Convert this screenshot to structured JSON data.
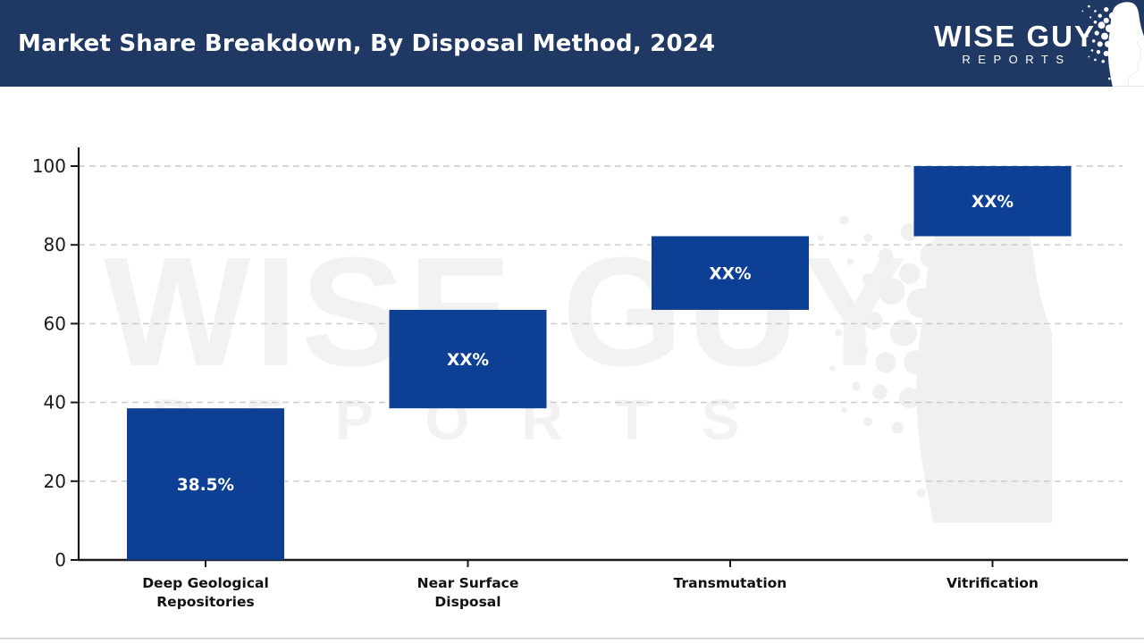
{
  "header": {
    "title": "Market Share Breakdown, By Disposal Method, 2024",
    "bg_color": "#203864",
    "title_color": "#ffffff",
    "logo": {
      "line1": "WISE GUY",
      "line2": "REPORTS"
    }
  },
  "watermark": {
    "line1": "WISE GUY",
    "line2": "REPORTS",
    "color": "#f2f2f2"
  },
  "chart_data": {
    "type": "bar",
    "variant": "waterfall",
    "title": "Market Share Breakdown, By Disposal Method, 2024",
    "categories": [
      "Deep Geological Repositories",
      "Near Surface Disposal",
      "Transmutation",
      "Vitrification"
    ],
    "category_lines": [
      [
        "Deep Geological",
        "Repositories"
      ],
      [
        "Near Surface",
        "Disposal"
      ],
      [
        "Transmutation"
      ],
      [
        "Vitrification"
      ]
    ],
    "bars": [
      {
        "category": "Deep Geological Repositories",
        "start": 0,
        "end": 38.5,
        "value_label": "38.5%"
      },
      {
        "category": "Near Surface Disposal",
        "start": 38.5,
        "end": 63.5,
        "value_label": "XX%"
      },
      {
        "category": "Transmutation",
        "start": 63.5,
        "end": 82.2,
        "value_label": "XX%"
      },
      {
        "category": "Vitrification",
        "start": 82.2,
        "end": 100,
        "value_label": "XX%"
      }
    ],
    "ylim": [
      0,
      100
    ],
    "yticks": [
      0,
      20,
      40,
      60,
      80,
      100
    ],
    "xlabel": "",
    "ylabel": "",
    "grid": "horizontal-dashed",
    "legend": "none",
    "bar_color": "#0d4094",
    "value_label_color": "#ffffff",
    "axis_color": "#1a1a1a",
    "gridline_color": "#c9c9c9",
    "tick_label_color": "#1a1a1a"
  }
}
